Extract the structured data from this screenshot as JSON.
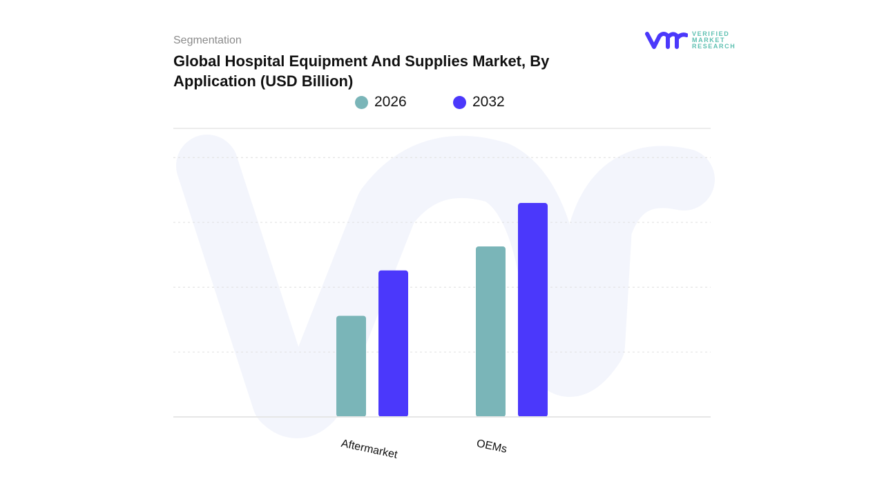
{
  "header": {
    "section": "Segmentation",
    "title": "Global Hospital Equipment And Supplies Market, By Application (USD Billion)"
  },
  "logo": {
    "mark": "vmr",
    "lines": [
      "VERIFIED",
      "MARKET",
      "RESEARCH"
    ]
  },
  "colors": {
    "2026": "#7ab5b8",
    "2032": "#4b38fb",
    "grid": "#e6e6e6",
    "watermark": "#f3f5fc"
  },
  "chart_data": {
    "type": "bar",
    "title": "Global Hospital Equipment And Supplies Market, By Application (USD Billion)",
    "categories": [
      "Aftermarket",
      "OEMs"
    ],
    "series": [
      {
        "name": "2026",
        "values": [
          1.56,
          2.63
        ]
      },
      {
        "name": "2032",
        "values": [
          2.26,
          3.3
        ]
      }
    ],
    "xlabel": "",
    "ylabel": "",
    "ylim": [
      0,
      4.45
    ],
    "y_ticks_shown": false,
    "grid": true,
    "legend": "top-center"
  }
}
